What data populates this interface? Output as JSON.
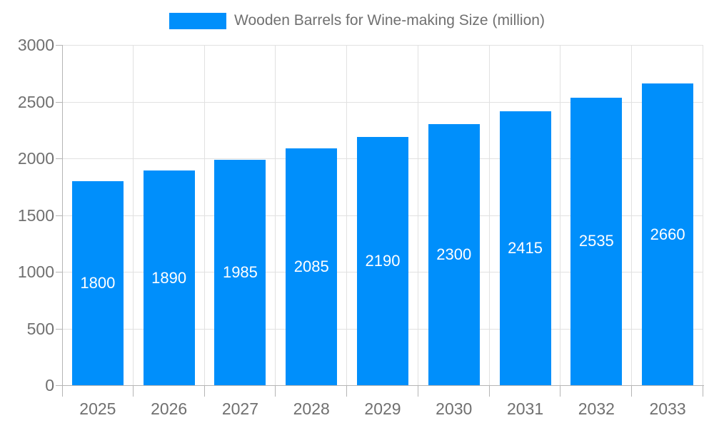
{
  "chart_data": {
    "type": "bar",
    "title": "Wooden Barrels for Wine-making Size (million)",
    "categories": [
      "2025",
      "2026",
      "2027",
      "2028",
      "2029",
      "2030",
      "2031",
      "2032",
      "2033"
    ],
    "series": [
      {
        "name": "Wooden Barrels for Wine-making Size (million)",
        "values": [
          1800,
          1890,
          1985,
          2085,
          2190,
          2300,
          2415,
          2535,
          2660
        ]
      }
    ],
    "xlabel": "",
    "ylabel": "",
    "ylim": [
      0,
      3000
    ],
    "ytick_step": 500,
    "ytick_labels": [
      "0",
      "500",
      "1000",
      "1500",
      "2000",
      "2500",
      "3000"
    ],
    "grid": "on",
    "legend_position": "top",
    "data_labels": "inside-center"
  },
  "colors": {
    "bar": "#008ffb",
    "data_label_text": "#ffffff",
    "axis_text": "#707070",
    "grid_line": "#e1e1e1",
    "axis_line": "#b5b5b5",
    "background": "#ffffff"
  }
}
